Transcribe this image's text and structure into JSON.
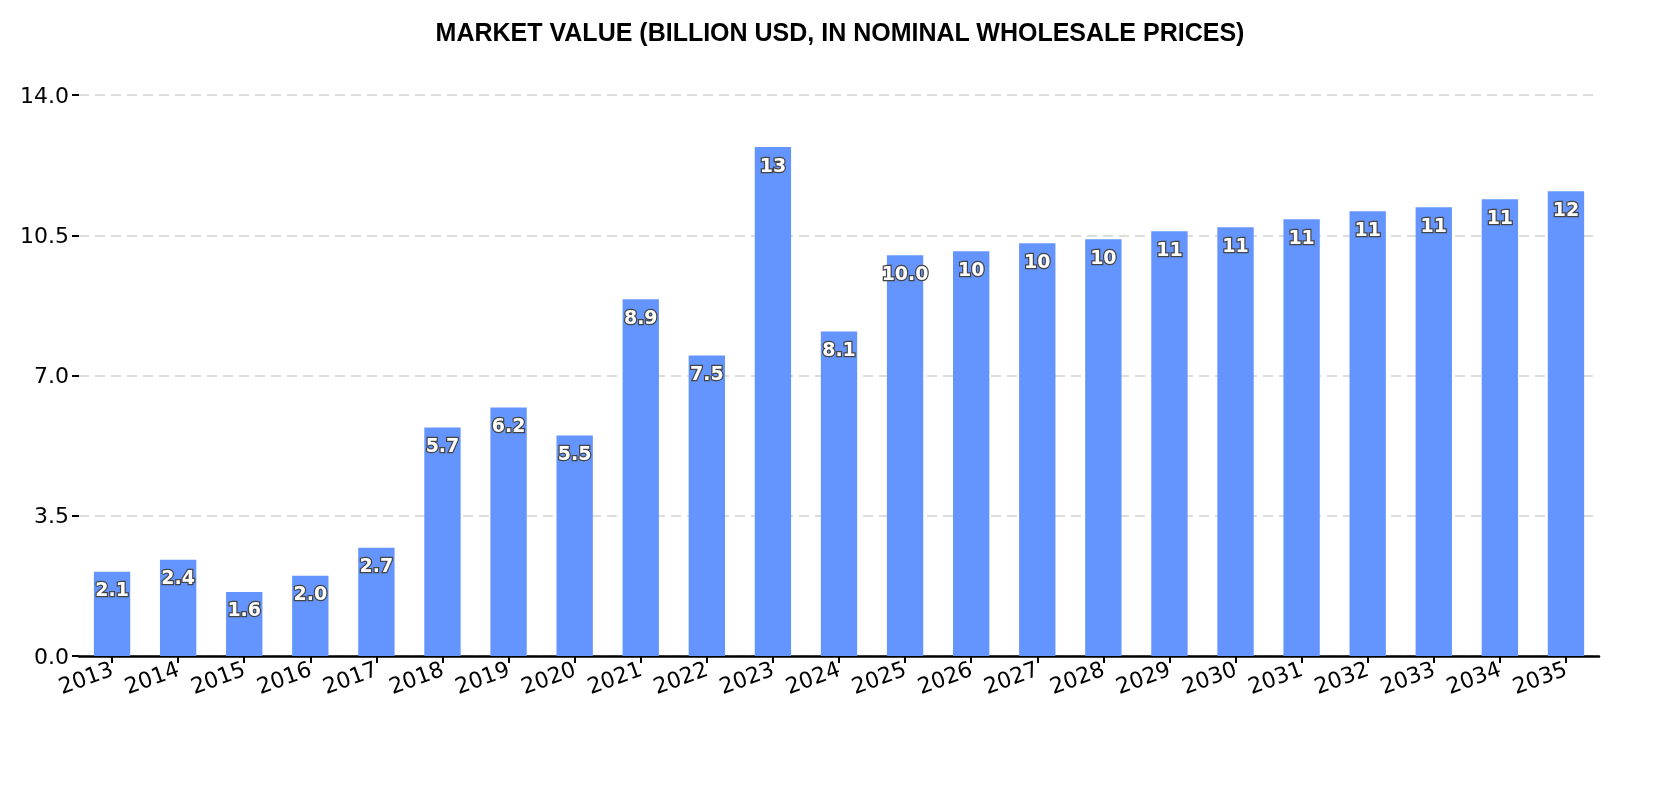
{
  "chart_data": {
    "type": "bar",
    "title": "MARKET VALUE (BILLION USD, IN NOMINAL WHOLESALE PRICES)",
    "categories": [
      "2013",
      "2014",
      "2015",
      "2016",
      "2017",
      "2018",
      "2019",
      "2020",
      "2021",
      "2022",
      "2023",
      "2024",
      "2025",
      "2026",
      "2027",
      "2028",
      "2029",
      "2030",
      "2031",
      "2032",
      "2033",
      "2034",
      "2035"
    ],
    "values": [
      2.1,
      2.4,
      1.6,
      2.0,
      2.7,
      5.7,
      6.2,
      5.5,
      8.9,
      7.5,
      12.7,
      8.1,
      10.0,
      10.1,
      10.3,
      10.4,
      10.6,
      10.7,
      10.9,
      11.1,
      11.2,
      11.4,
      11.6
    ],
    "value_labels": [
      "2.1",
      "2.4",
      "1.6",
      "2.0",
      "2.7",
      "5.7",
      "6.2",
      "5.5",
      "8.9",
      "7.5",
      "13",
      "8.1",
      "10.0",
      "10",
      "10",
      "10",
      "11",
      "11",
      "11",
      "11",
      "11",
      "11",
      "12"
    ],
    "color": "#6495ff",
    "ylim": [
      0,
      14
    ],
    "yticks": [
      {
        "value": 0,
        "label": "0.0"
      },
      {
        "value": 3.5,
        "label": "3.5"
      },
      {
        "value": 7,
        "label": "7.0"
      },
      {
        "value": 10.5,
        "label": "10.5"
      },
      {
        "value": 14,
        "label": "14.0"
      }
    ],
    "grid": "y"
  }
}
